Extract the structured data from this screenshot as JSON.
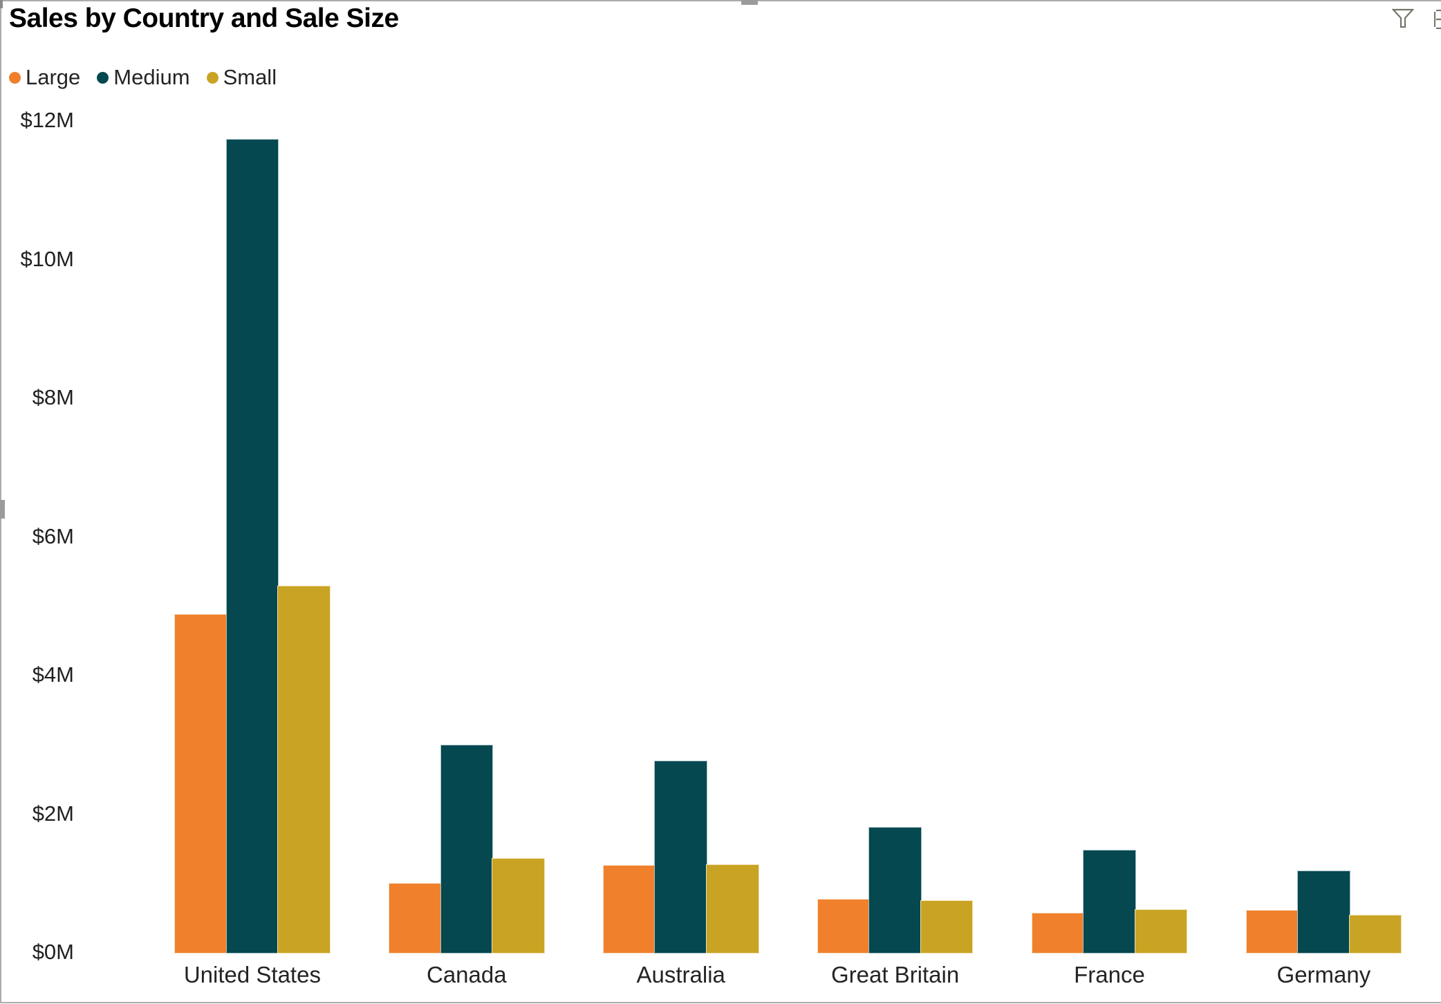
{
  "header": {
    "title": "Sales by Country and Sale Size",
    "icons": [
      {
        "name": "filter-icon",
        "glyph": "funnel-outline"
      },
      {
        "name": "focus-mode-partial-icon",
        "glyph": "clipped-square"
      }
    ],
    "icon_color": "#75756b"
  },
  "container": {
    "border_color": "#ababab",
    "handle_color": "#9b9b9b",
    "background": "#ffffff"
  },
  "chart_data": {
    "type": "bar",
    "title": "Sales by Country and Sale Size",
    "xlabel": "",
    "ylabel": "",
    "categories": [
      "United States",
      "Canada",
      "Australia",
      "Great Britain",
      "France",
      "Germany"
    ],
    "series": [
      {
        "name": "Large",
        "color": "#f0802c",
        "edge": "#f6ddc2",
        "values": [
          4.88,
          1.0,
          1.26,
          0.77,
          0.57,
          0.61
        ]
      },
      {
        "name": "Medium",
        "color": "#05484f",
        "edge": "#a9c2c7",
        "values": [
          11.72,
          2.99,
          2.76,
          1.8,
          1.48,
          1.18
        ]
      },
      {
        "name": "Small",
        "color": "#c9a323",
        "edge": "#efe2b4",
        "values": [
          5.28,
          1.36,
          1.27,
          0.75,
          0.62,
          0.54
        ]
      }
    ],
    "values_unit": "M USD",
    "y_ticks": [
      "$0M",
      "$2M",
      "$4M",
      "$6M",
      "$8M",
      "$10M",
      "$12M"
    ],
    "ylim": [
      0,
      12
    ],
    "grid": false,
    "legend_position": "top-left",
    "text_color": "#252423"
  }
}
